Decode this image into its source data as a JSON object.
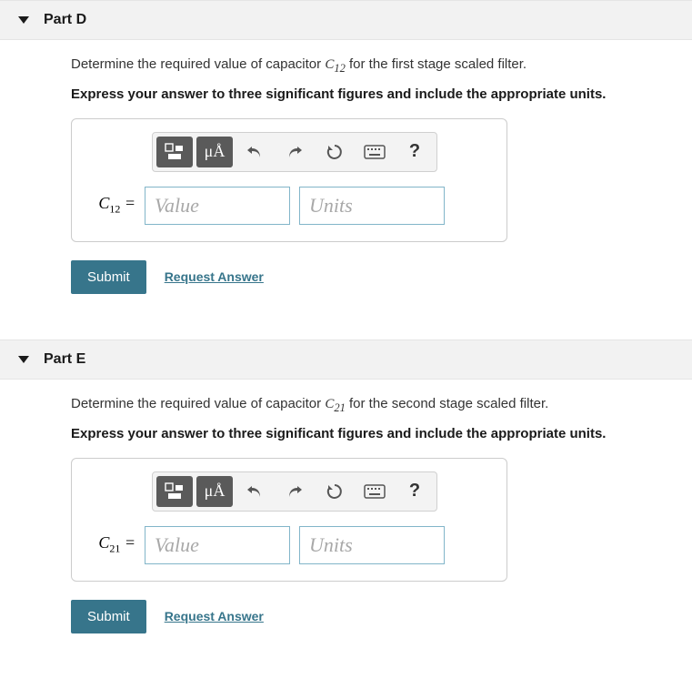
{
  "parts": [
    {
      "title": "Part D",
      "prompt_before": "Determine the required value of capacitor ",
      "variable_html": "C<sub>12</sub>",
      "prompt_after": " for the first stage scaled filter.",
      "instruction": "Express your answer to three significant figures and include the appropriate units.",
      "input_label_html": "C<sub>12</sub> =",
      "value_placeholder": "Value",
      "units_placeholder": "Units",
      "submit_label": "Submit",
      "request_label": "Request Answer",
      "toolbar": {
        "template_icon": "template",
        "mu_label": "μÅ",
        "undo_icon": "undo",
        "redo_icon": "redo",
        "reset_icon": "reset",
        "keyboard_icon": "keyboard",
        "help_label": "?"
      },
      "colors": {
        "box_border": "#cccccc",
        "input_border": "#82b5c9",
        "submit_bg": "#37758b",
        "link_color": "#37758b",
        "toolbar_dark": "#5a5a5a",
        "toolbar_bg": "#f3f3f3",
        "header_bg": "#f2f2f2"
      }
    },
    {
      "title": "Part E",
      "prompt_before": "Determine the required value of capacitor ",
      "variable_html": "C<sub>21</sub>",
      "prompt_after": " for the second stage scaled filter.",
      "instruction": "Express your answer to three significant figures and include the appropriate units.",
      "input_label_html": "C<sub>21</sub> =",
      "value_placeholder": "Value",
      "units_placeholder": "Units",
      "submit_label": "Submit",
      "request_label": "Request Answer",
      "toolbar": {
        "template_icon": "template",
        "mu_label": "μÅ",
        "undo_icon": "undo",
        "redo_icon": "redo",
        "reset_icon": "reset",
        "keyboard_icon": "keyboard",
        "help_label": "?"
      },
      "colors": {
        "box_border": "#cccccc",
        "input_border": "#82b5c9",
        "submit_bg": "#37758b",
        "link_color": "#37758b",
        "toolbar_dark": "#5a5a5a",
        "toolbar_bg": "#f3f3f3",
        "header_bg": "#f2f2f2"
      }
    }
  ]
}
